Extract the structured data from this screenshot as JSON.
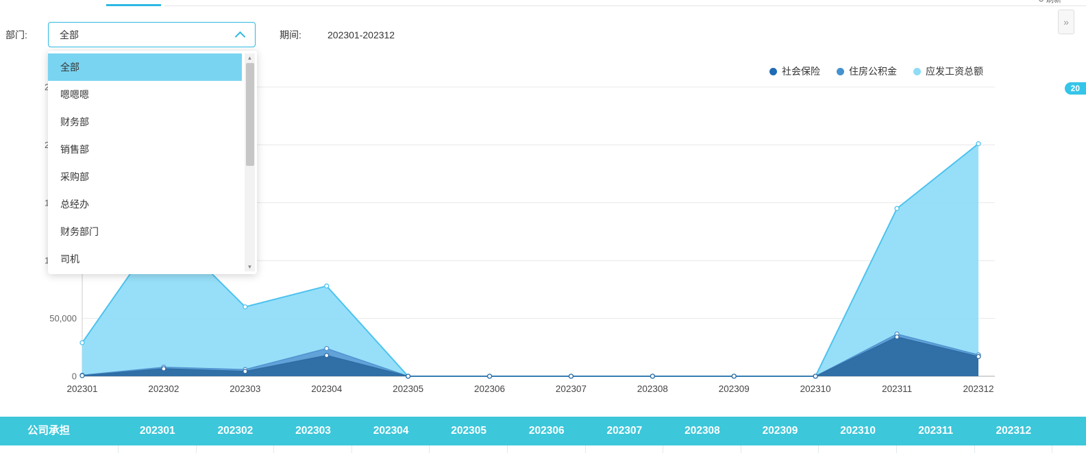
{
  "topbar": {
    "refresh_label": "刷新",
    "collapse_icon": "»"
  },
  "filters": {
    "department_label": "部门:",
    "department_value": "全部",
    "period_label": "期间:",
    "period_value": "202301-202312"
  },
  "dropdown": {
    "selected": "全部",
    "options": [
      "全部",
      "嗯嗯嗯",
      "财务部",
      "销售部",
      "采购部",
      "总经办",
      "财务部门",
      "司机"
    ]
  },
  "legend": [
    {
      "label": "社会保险",
      "color": "#1f6bb4"
    },
    {
      "label": "住房公积金",
      "color": "#4592cf"
    },
    {
      "label": "应发工资总额",
      "color": "#8edcf7"
    }
  ],
  "edge_badge": "20",
  "chart_data": {
    "type": "area",
    "title": "",
    "xlabel": "",
    "ylabel": "",
    "ylim": [
      0,
      250000
    ],
    "y_tick_step": 50000,
    "grid": true,
    "legend_position": "top-right",
    "categories": [
      "202301",
      "202302",
      "202303",
      "202304",
      "202305",
      "202306",
      "202307",
      "202308",
      "202309",
      "202310",
      "202311",
      "202312"
    ],
    "series": [
      {
        "name": "应发工资总额",
        "fill": "#8edcf7",
        "stroke": "#4cc2ef",
        "fill_opacity": 0.92,
        "stroke_width": 2,
        "values": [
          29000,
          130000,
          60000,
          78000,
          0,
          0,
          0,
          0,
          0,
          0,
          145000,
          201000
        ]
      },
      {
        "name": "住房公积金",
        "fill": "#5b9bd5",
        "stroke": "#4f93cf",
        "fill_opacity": 0.9,
        "stroke_width": 1.5,
        "values": [
          900,
          7800,
          5800,
          24000,
          0,
          0,
          0,
          0,
          0,
          0,
          36500,
          18500
        ]
      },
      {
        "name": "社会保险",
        "fill": "#2e6da4",
        "stroke": "#2e6da4",
        "fill_opacity": 0.95,
        "stroke_width": 1.5,
        "values": [
          500,
          6500,
          4200,
          18000,
          0,
          0,
          0,
          0,
          0,
          0,
          34000,
          17000
        ]
      }
    ]
  },
  "table": {
    "row_label": "公司承担",
    "columns": [
      "202301",
      "202302",
      "202303",
      "202304",
      "202305",
      "202306",
      "202307",
      "202308",
      "202309",
      "202310",
      "202311",
      "202312"
    ]
  }
}
